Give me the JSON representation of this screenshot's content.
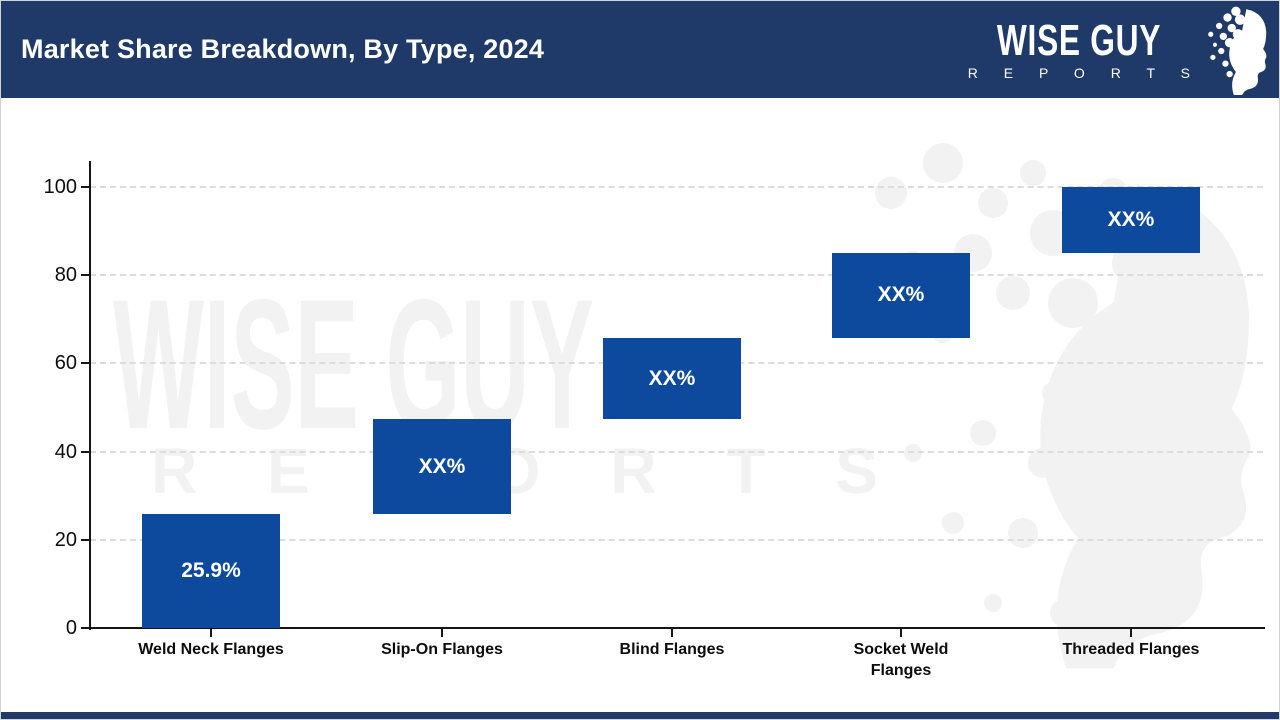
{
  "header": {
    "title": "Market Share Breakdown, By Type, 2024",
    "logo": {
      "line1": "WISE GUY",
      "line2": "R E P O R T S"
    }
  },
  "watermark": {
    "line1": "WISE GUY",
    "line2": "R E P O R T S"
  },
  "colors": {
    "header_bg": "#1f3a68",
    "footer_bg": "#1f3a68",
    "bar": "#0d4a9e",
    "grid": "#dcdcdc",
    "bar_label": "#ffffff",
    "axis_text": "#0d0d0d"
  },
  "chart_data": {
    "type": "bar",
    "subtype": "waterfall",
    "title": "Market Share Breakdown, By Type, 2024",
    "categories": [
      "Weld Neck Flanges",
      "Slip-On Flanges",
      "Blind Flanges",
      "Socket Weld Flanges",
      "Threaded Flanges"
    ],
    "category_labels": [
      "Weld Neck Flanges",
      "Slip-On Flanges",
      "Blind Flanges",
      "Socket Weld\nFlanges",
      "Threaded Flanges"
    ],
    "segments": [
      {
        "start": 0,
        "end": 25.9,
        "label": "25.9%"
      },
      {
        "start": 25.9,
        "end": 47.3,
        "label": "XX%"
      },
      {
        "start": 47.3,
        "end": 65.8,
        "label": "XX%"
      },
      {
        "start": 65.8,
        "end": 85.0,
        "label": "XX%"
      },
      {
        "start": 85.0,
        "end": 100,
        "label": "XX%"
      }
    ],
    "xlabel": "",
    "ylabel": "",
    "ylim": [
      0,
      105
    ],
    "yticks": [
      0,
      20,
      40,
      60,
      80,
      100
    ],
    "grid": true,
    "legend": false
  }
}
